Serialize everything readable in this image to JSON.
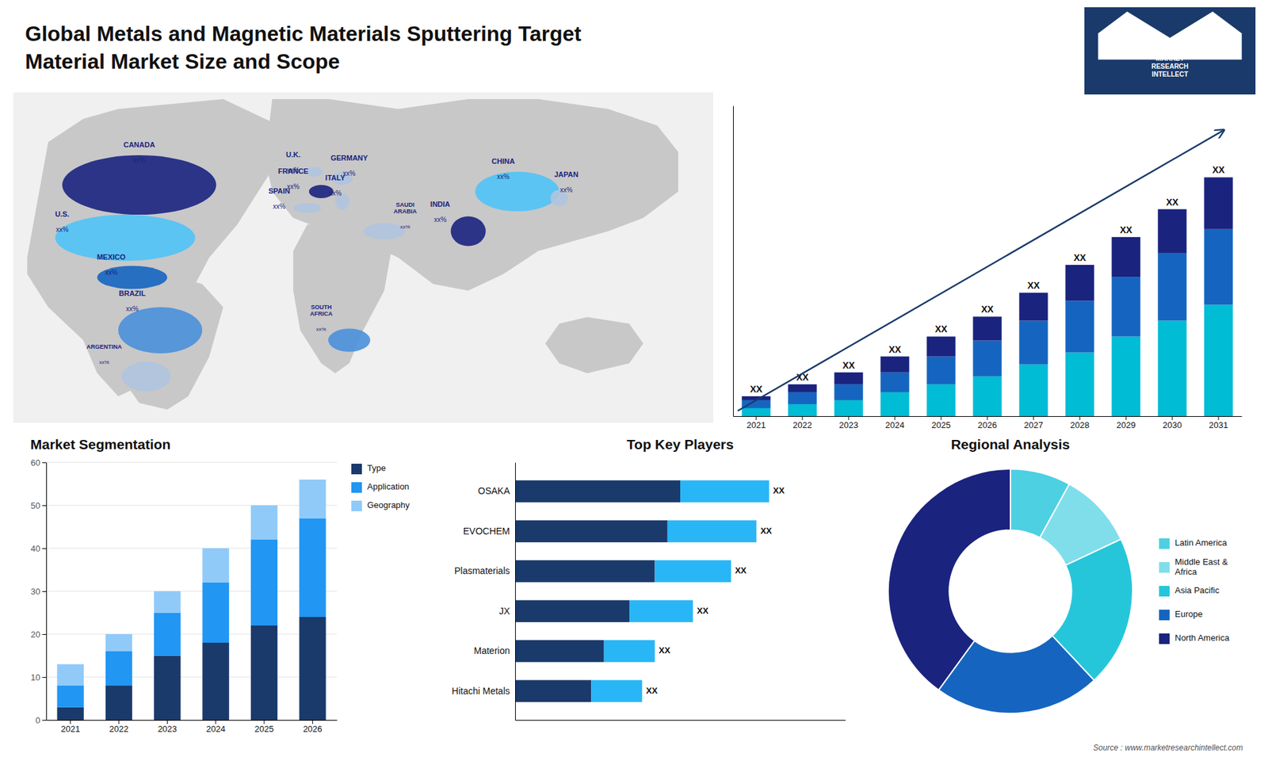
{
  "title": "Global Metals and Magnetic Materials Sputtering Target",
  "subtitle": "Material Market Size and Scope",
  "annotations": [
    "Source : www.marketresearchintellect.com",
    "MARKET\nRESEARCH\nINTELLECT"
  ],
  "chart_data": [
    {
      "type": "bar",
      "stacked": true,
      "categories": [
        "2021",
        "2022",
        "2023",
        "2024",
        "2025",
        "2026",
        "2027",
        "2028",
        "2029",
        "2030",
        "2031"
      ],
      "series": [
        {
          "color": "#00bcd4",
          "values": [
            2,
            3,
            4,
            6,
            8,
            10,
            13,
            16,
            20,
            24,
            28
          ]
        },
        {
          "color": "#1565c0",
          "values": [
            2,
            3,
            4,
            5,
            7,
            9,
            11,
            13,
            15,
            17,
            19
          ]
        },
        {
          "color": "#1a237e",
          "values": [
            1,
            2,
            3,
            4,
            5,
            6,
            7,
            9,
            10,
            11,
            13
          ]
        }
      ],
      "ylim": [
        0,
        78
      ],
      "tick_labels": "x",
      "annotations": [
        "XX",
        "XX",
        "XX",
        "XX",
        "XX",
        "XX",
        "XX",
        "XX",
        "XX",
        "XX",
        "XX"
      ]
    },
    {
      "type": "bar",
      "stacked": true,
      "title": "Market Segmentation",
      "categories": [
        "2021",
        "2022",
        "2023",
        "2024",
        "2025",
        "2026"
      ],
      "series": [
        {
          "name": "Type",
          "color": "#1a3a6b",
          "values": [
            3,
            8,
            15,
            18,
            22,
            24
          ]
        },
        {
          "name": "Application",
          "color": "#2196f3",
          "values": [
            5,
            8,
            10,
            14,
            20,
            23
          ]
        },
        {
          "name": "Geography",
          "color": "#90caf9",
          "values": [
            5,
            4,
            5,
            8,
            8,
            9
          ]
        }
      ],
      "ylim": [
        0,
        60
      ],
      "yticks": [
        0,
        10,
        20,
        30,
        40,
        50,
        60
      ],
      "grid": true,
      "legend": "right"
    },
    {
      "type": "bar",
      "orientation": "horizontal",
      "stacked": true,
      "title": "Top Key Players",
      "categories": [
        "OSAKA",
        "EVOCHEM",
        "Plasmaterials",
        "JX",
        "Materion",
        "Hitachi Metals"
      ],
      "series": [
        {
          "color": "#1a3a6b",
          "values": [
            6.5,
            6.0,
            5.5,
            4.5,
            3.5,
            3.0
          ]
        },
        {
          "color": "#29b6f6",
          "values": [
            3.5,
            3.5,
            3.0,
            2.5,
            2.0,
            2.0
          ]
        }
      ],
      "xlim": [
        0,
        13
      ],
      "tick_labels": "y",
      "annotations": [
        "XX",
        "XX",
        "XX",
        "XX",
        "XX",
        "XX"
      ]
    },
    {
      "type": "pie",
      "title": "Regional Analysis",
      "categories": [
        "Latin America",
        "Middle East &\nAfrica",
        "Asia Pacific",
        "Europe",
        "North America"
      ],
      "values": [
        8,
        10,
        20,
        22,
        40
      ],
      "colors": [
        "#4dd0e1",
        "#80deea",
        "#26c6da",
        "#1565c0",
        "#1a237e"
      ],
      "legend": "right"
    },
    {
      "type": "map",
      "categories": [
        "CANADA",
        "U.S.",
        "MEXICO",
        "BRAZIL",
        "ARGENTINA",
        "U.K.",
        "FRANCE",
        "SPAIN",
        "GERMANY",
        "ITALY",
        "SAUDI\nARABIA",
        "SOUTH\nAFRICA",
        "CHINA",
        "INDIA",
        "JAPAN"
      ],
      "colors": [
        "#1a237e",
        "#4fc3f7",
        "#1565c0",
        "#4a90d9",
        "#b0c4de",
        "#b0c4de",
        "#1a237e",
        "#b0c4de",
        "#b0c4de",
        "#b0c4de",
        "#b0c4de",
        "#4a90d9",
        "#4fc3f7",
        "#1a237e",
        "#b0c4de"
      ],
      "annotations": [
        "xx%",
        "xx%",
        "xx%",
        "xx%",
        "xx%",
        "xx%",
        "xx%",
        "xx%",
        "xx%",
        "xx%",
        "xx%",
        "xx%",
        "xx%",
        "xx%",
        "xx%"
      ]
    }
  ]
}
